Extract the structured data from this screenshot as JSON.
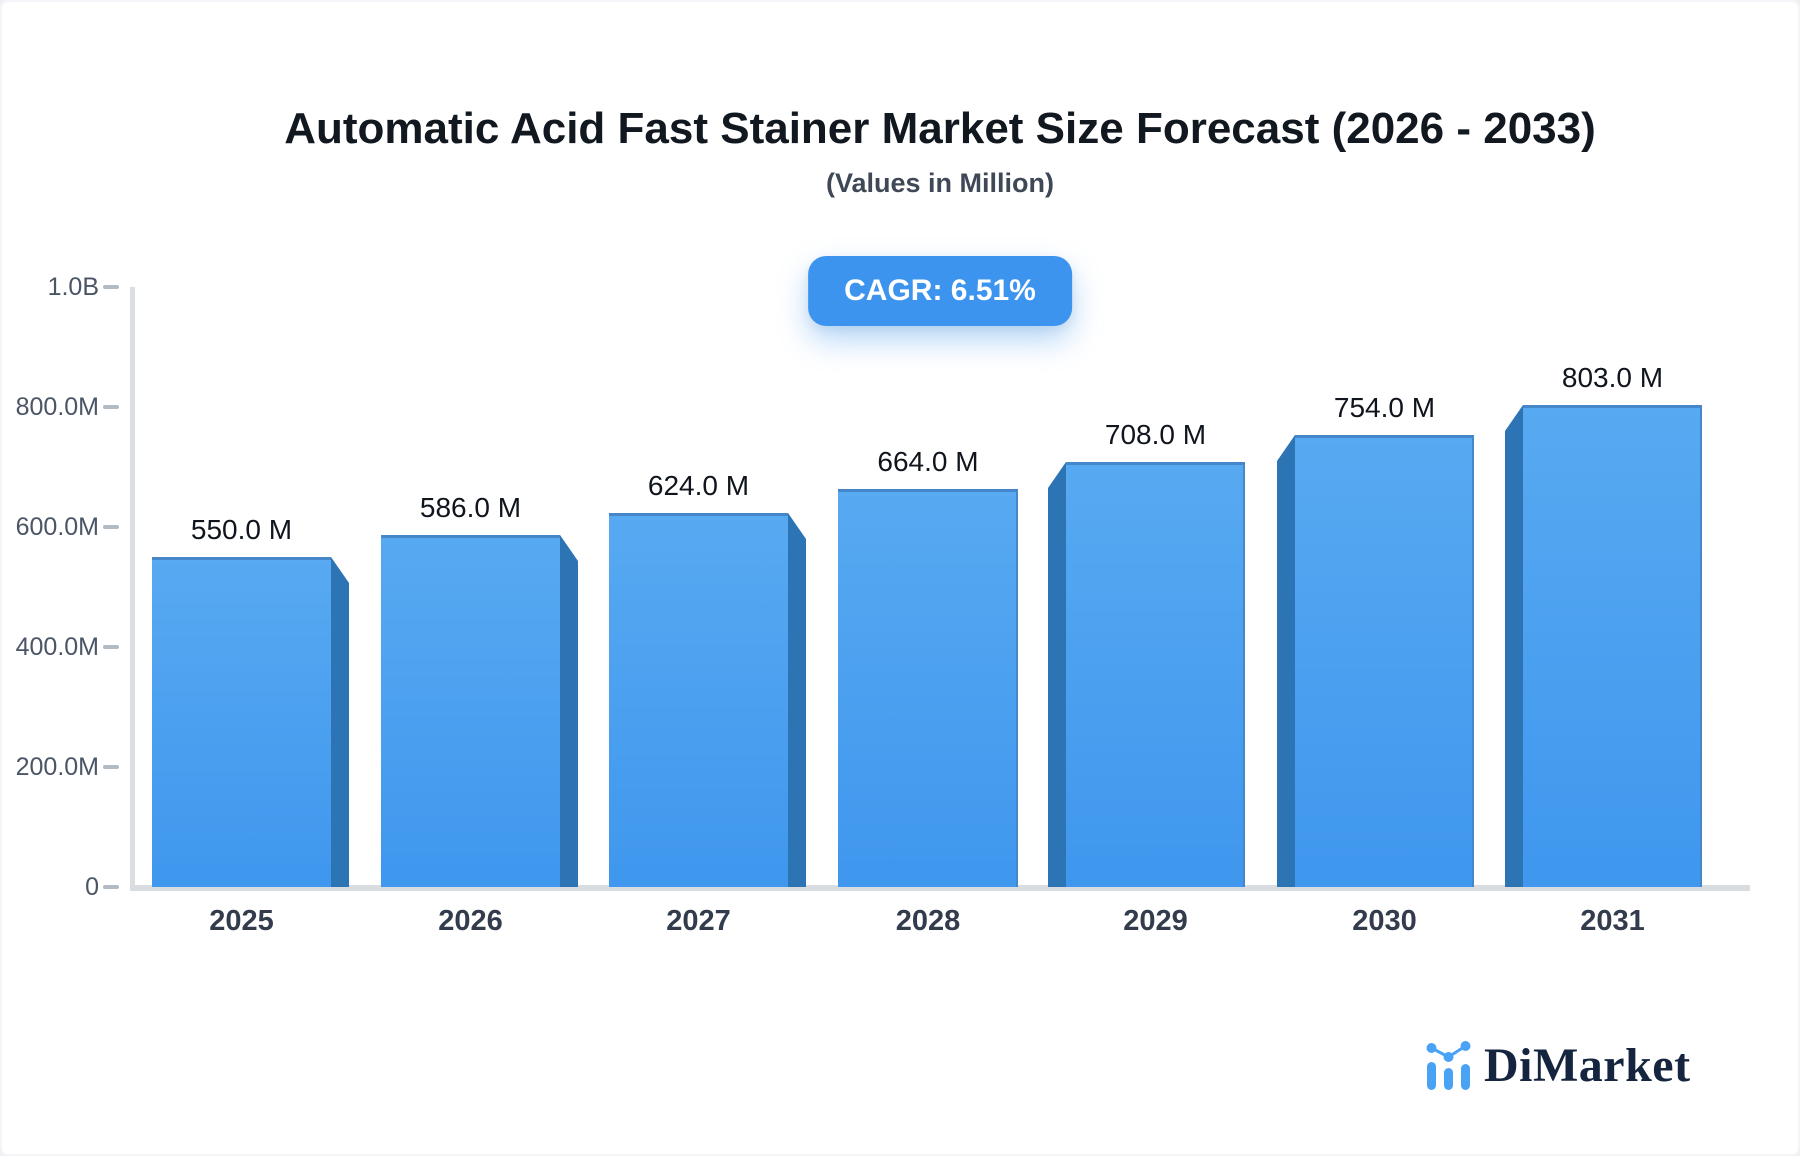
{
  "title": "Automatic Acid Fast Stainer Market Size Forecast (2026 - 2033)",
  "subtitle": "(Values in Million)",
  "cagr_label": "CAGR: 6.51%",
  "logo": {
    "brand": "DiMarket"
  },
  "colors": {
    "badge_bg": "#3d94ef",
    "bar_face_top": "#57a9f1",
    "bar_face_bottom": "#3f97ee",
    "bar_face_edge": "#4587c9",
    "bar_side": "#2d74b5",
    "axis": "#d9dce1",
    "tick": "#b4bac3",
    "logo_icon_blue": "#4aa2f5",
    "logo_text": "#16253f"
  },
  "chart_data": {
    "type": "bar",
    "title": "Automatic Acid Fast Stainer Market Size Forecast (2026 - 2033)",
    "subtitle": "(Values in Million)",
    "categories": [
      "2025",
      "2026",
      "2027",
      "2028",
      "2029",
      "2030",
      "2031"
    ],
    "values": [
      550,
      586,
      624,
      664,
      708,
      754,
      803
    ],
    "bar_labels": [
      "550.0 M",
      "586.0 M",
      "624.0 M",
      "664.0 M",
      "708.0 M",
      "754.0 M",
      "803.0 M"
    ],
    "unit": "Million",
    "xlabel": "",
    "ylabel": "",
    "ylim": [
      0,
      1000
    ],
    "yticks": [
      {
        "label": "1.0B",
        "value": 1000
      },
      {
        "label": "800.0M",
        "value": 800
      },
      {
        "label": "600.0M",
        "value": 600
      },
      {
        "label": "400.0M",
        "value": 400
      },
      {
        "label": "200.0M",
        "value": 200
      },
      {
        "label": "0",
        "value": 0
      }
    ],
    "grid": false,
    "legend": false,
    "style": "3d-perspective-bars",
    "annotation": "CAGR: 6.51%"
  }
}
